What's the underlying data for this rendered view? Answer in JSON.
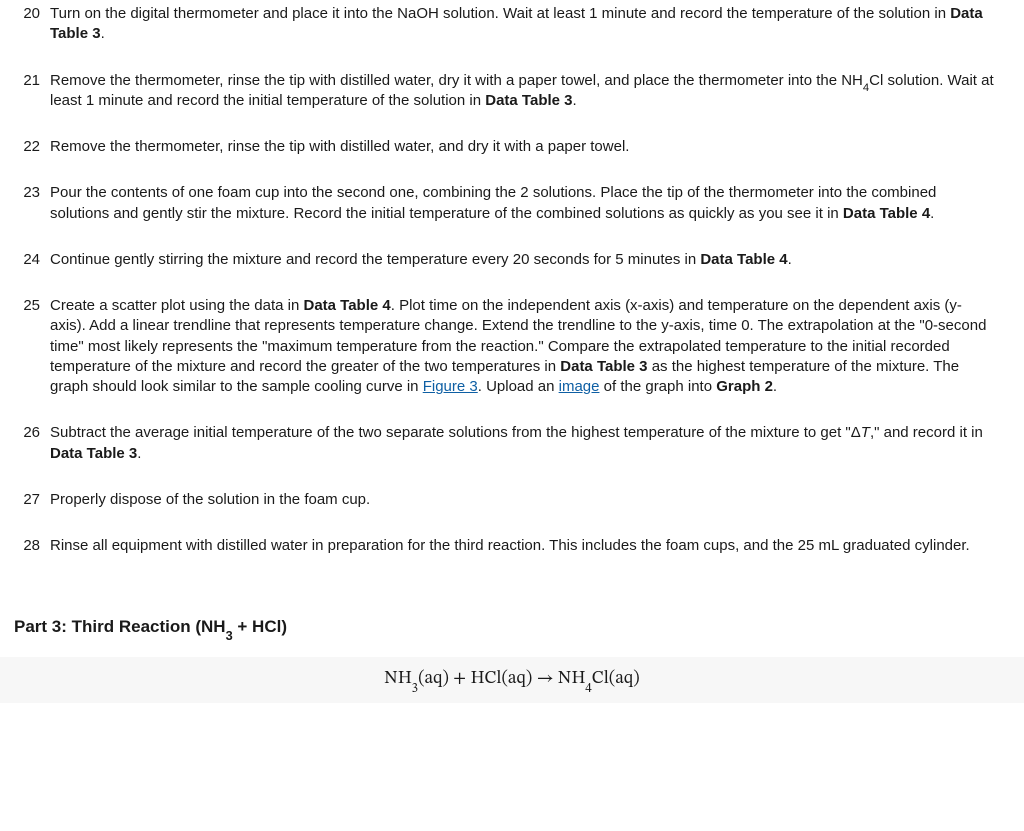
{
  "steps": [
    {
      "n": "20",
      "parts": [
        {
          "t": "text",
          "v": "Turn on the digital thermometer and place it into the NaOH solution. Wait at least 1 minute and record the temperature of the solution in "
        },
        {
          "t": "bold",
          "v": "Data Table 3"
        },
        {
          "t": "text",
          "v": "."
        }
      ]
    },
    {
      "n": "21",
      "parts": [
        {
          "t": "text",
          "v": "Remove the thermometer, rinse the tip with distilled water, dry it with a paper towel, and place the thermometer into the NH"
        },
        {
          "t": "sub",
          "v": "4"
        },
        {
          "t": "text",
          "v": "Cl solution. Wait at least 1 minute and record the initial temperature of the solution in "
        },
        {
          "t": "bold",
          "v": "Data Table 3"
        },
        {
          "t": "text",
          "v": "."
        }
      ]
    },
    {
      "n": "22",
      "parts": [
        {
          "t": "text",
          "v": "Remove the thermometer, rinse the tip with distilled water, and dry it with a paper towel."
        }
      ]
    },
    {
      "n": "23",
      "parts": [
        {
          "t": "text",
          "v": "Pour the contents of one foam cup into the second one, combining the 2 solutions. Place the tip of the thermometer into the combined solutions and gently stir the mixture. Record the initial temperature of the combined solutions as quickly as you see it in "
        },
        {
          "t": "bold",
          "v": "Data Table 4"
        },
        {
          "t": "text",
          "v": "."
        }
      ]
    },
    {
      "n": "24",
      "parts": [
        {
          "t": "text",
          "v": "Continue gently stirring the mixture and record the temperature every 20 seconds for 5 minutes in "
        },
        {
          "t": "bold",
          "v": "Data Table 4"
        },
        {
          "t": "text",
          "v": "."
        }
      ]
    },
    {
      "n": "25",
      "parts": [
        {
          "t": "text",
          "v": "Create a scatter plot using the data in "
        },
        {
          "t": "bold",
          "v": "Data Table 4"
        },
        {
          "t": "text",
          "v": ". Plot time on the independent axis (x-axis) and temperature on the dependent axis (y-axis). Add a linear trendline that represents temperature change. Extend the trendline to the y-axis, time 0. The extrapolation at the \"0-second time\" most likely represents the \"maximum temperature from the reaction.\" Compare the extrapolated temperature to the initial recorded temperature of the mixture and record the greater of the two temperatures in "
        },
        {
          "t": "bold",
          "v": "Data Table 3"
        },
        {
          "t": "text",
          "v": " as the highest temperature of the mixture. The graph should look similar to the sample cooling curve in "
        },
        {
          "t": "link",
          "v": "Figure 3"
        },
        {
          "t": "text",
          "v": ". Upload an "
        },
        {
          "t": "link",
          "v": "image"
        },
        {
          "t": "text",
          "v": " of the graph into "
        },
        {
          "t": "bold",
          "v": "Graph 2"
        },
        {
          "t": "text",
          "v": "."
        }
      ]
    },
    {
      "n": "26",
      "parts": [
        {
          "t": "text",
          "v": "Subtract the average initial temperature of the two separate solutions from the highest temperature of the mixture to get \"Δ"
        },
        {
          "t": "ital",
          "v": "T"
        },
        {
          "t": "text",
          "v": ",\" and record it in "
        },
        {
          "t": "bold",
          "v": "Data Table 3"
        },
        {
          "t": "text",
          "v": "."
        }
      ]
    },
    {
      "n": "27",
      "parts": [
        {
          "t": "text",
          "v": "Properly dispose of the solution in the foam cup."
        }
      ]
    },
    {
      "n": "28",
      "parts": [
        {
          "t": "text",
          "v": "Rinse all equipment with distilled water in preparation for the third reaction. This includes the foam cups, and the 25 mL graduated cylinder."
        }
      ]
    }
  ],
  "part_title_parts": [
    {
      "t": "text",
      "v": "Part 3: Third Reaction (NH"
    },
    {
      "t": "sub",
      "v": "3"
    },
    {
      "t": "text",
      "v": " + HCl)"
    }
  ],
  "equation_parts": [
    {
      "t": "text",
      "v": "NH"
    },
    {
      "t": "sub",
      "v": "3"
    },
    {
      "t": "text",
      "v": "(aq) + HCl(aq) → NH"
    },
    {
      "t": "sub",
      "v": "4"
    },
    {
      "t": "text",
      "v": "Cl(aq)"
    }
  ]
}
